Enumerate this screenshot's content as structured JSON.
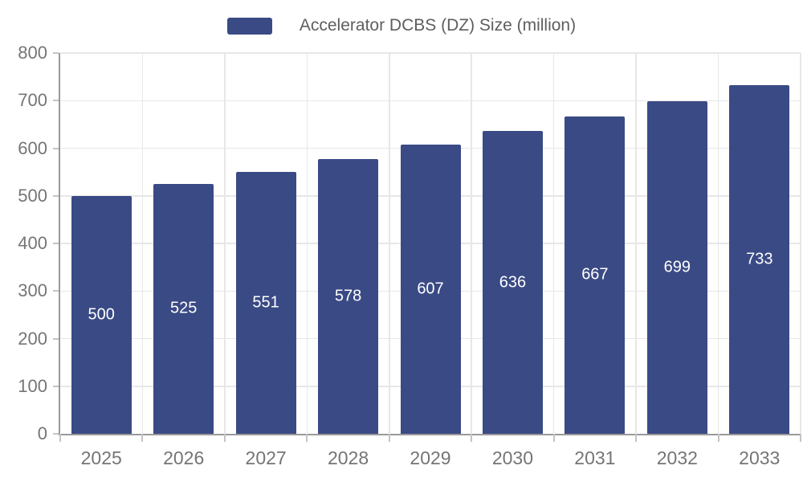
{
  "legend": {
    "label": "Accelerator DCBS (DZ) Size (million)"
  },
  "colors": {
    "background": "#ffffff",
    "bar": "#3a4a85",
    "grid": "#e7e7e7",
    "axis": "#9a9a9a",
    "tick": "#c4c4c4",
    "tick_text": "#757575",
    "legend_text": "#5e5e5e",
    "value_label_text": "#ffffff"
  },
  "chart_data": {
    "type": "bar",
    "title": "",
    "xlabel": "",
    "ylabel": "",
    "categories": [
      "2025",
      "2026",
      "2027",
      "2028",
      "2029",
      "2030",
      "2031",
      "2032",
      "2033"
    ],
    "series": [
      {
        "name": "Accelerator DCBS (DZ) Size (million)",
        "values": [
          500,
          525,
          551,
          578,
          607,
          636,
          667,
          699,
          733
        ]
      }
    ],
    "ylim": [
      0,
      800
    ],
    "ytick_step": 100,
    "yticks": [
      0,
      100,
      200,
      300,
      400,
      500,
      600,
      700,
      800
    ],
    "grid": true,
    "grid_vertical": true,
    "legend_position": "top-center",
    "value_labels": "inside-middle"
  }
}
